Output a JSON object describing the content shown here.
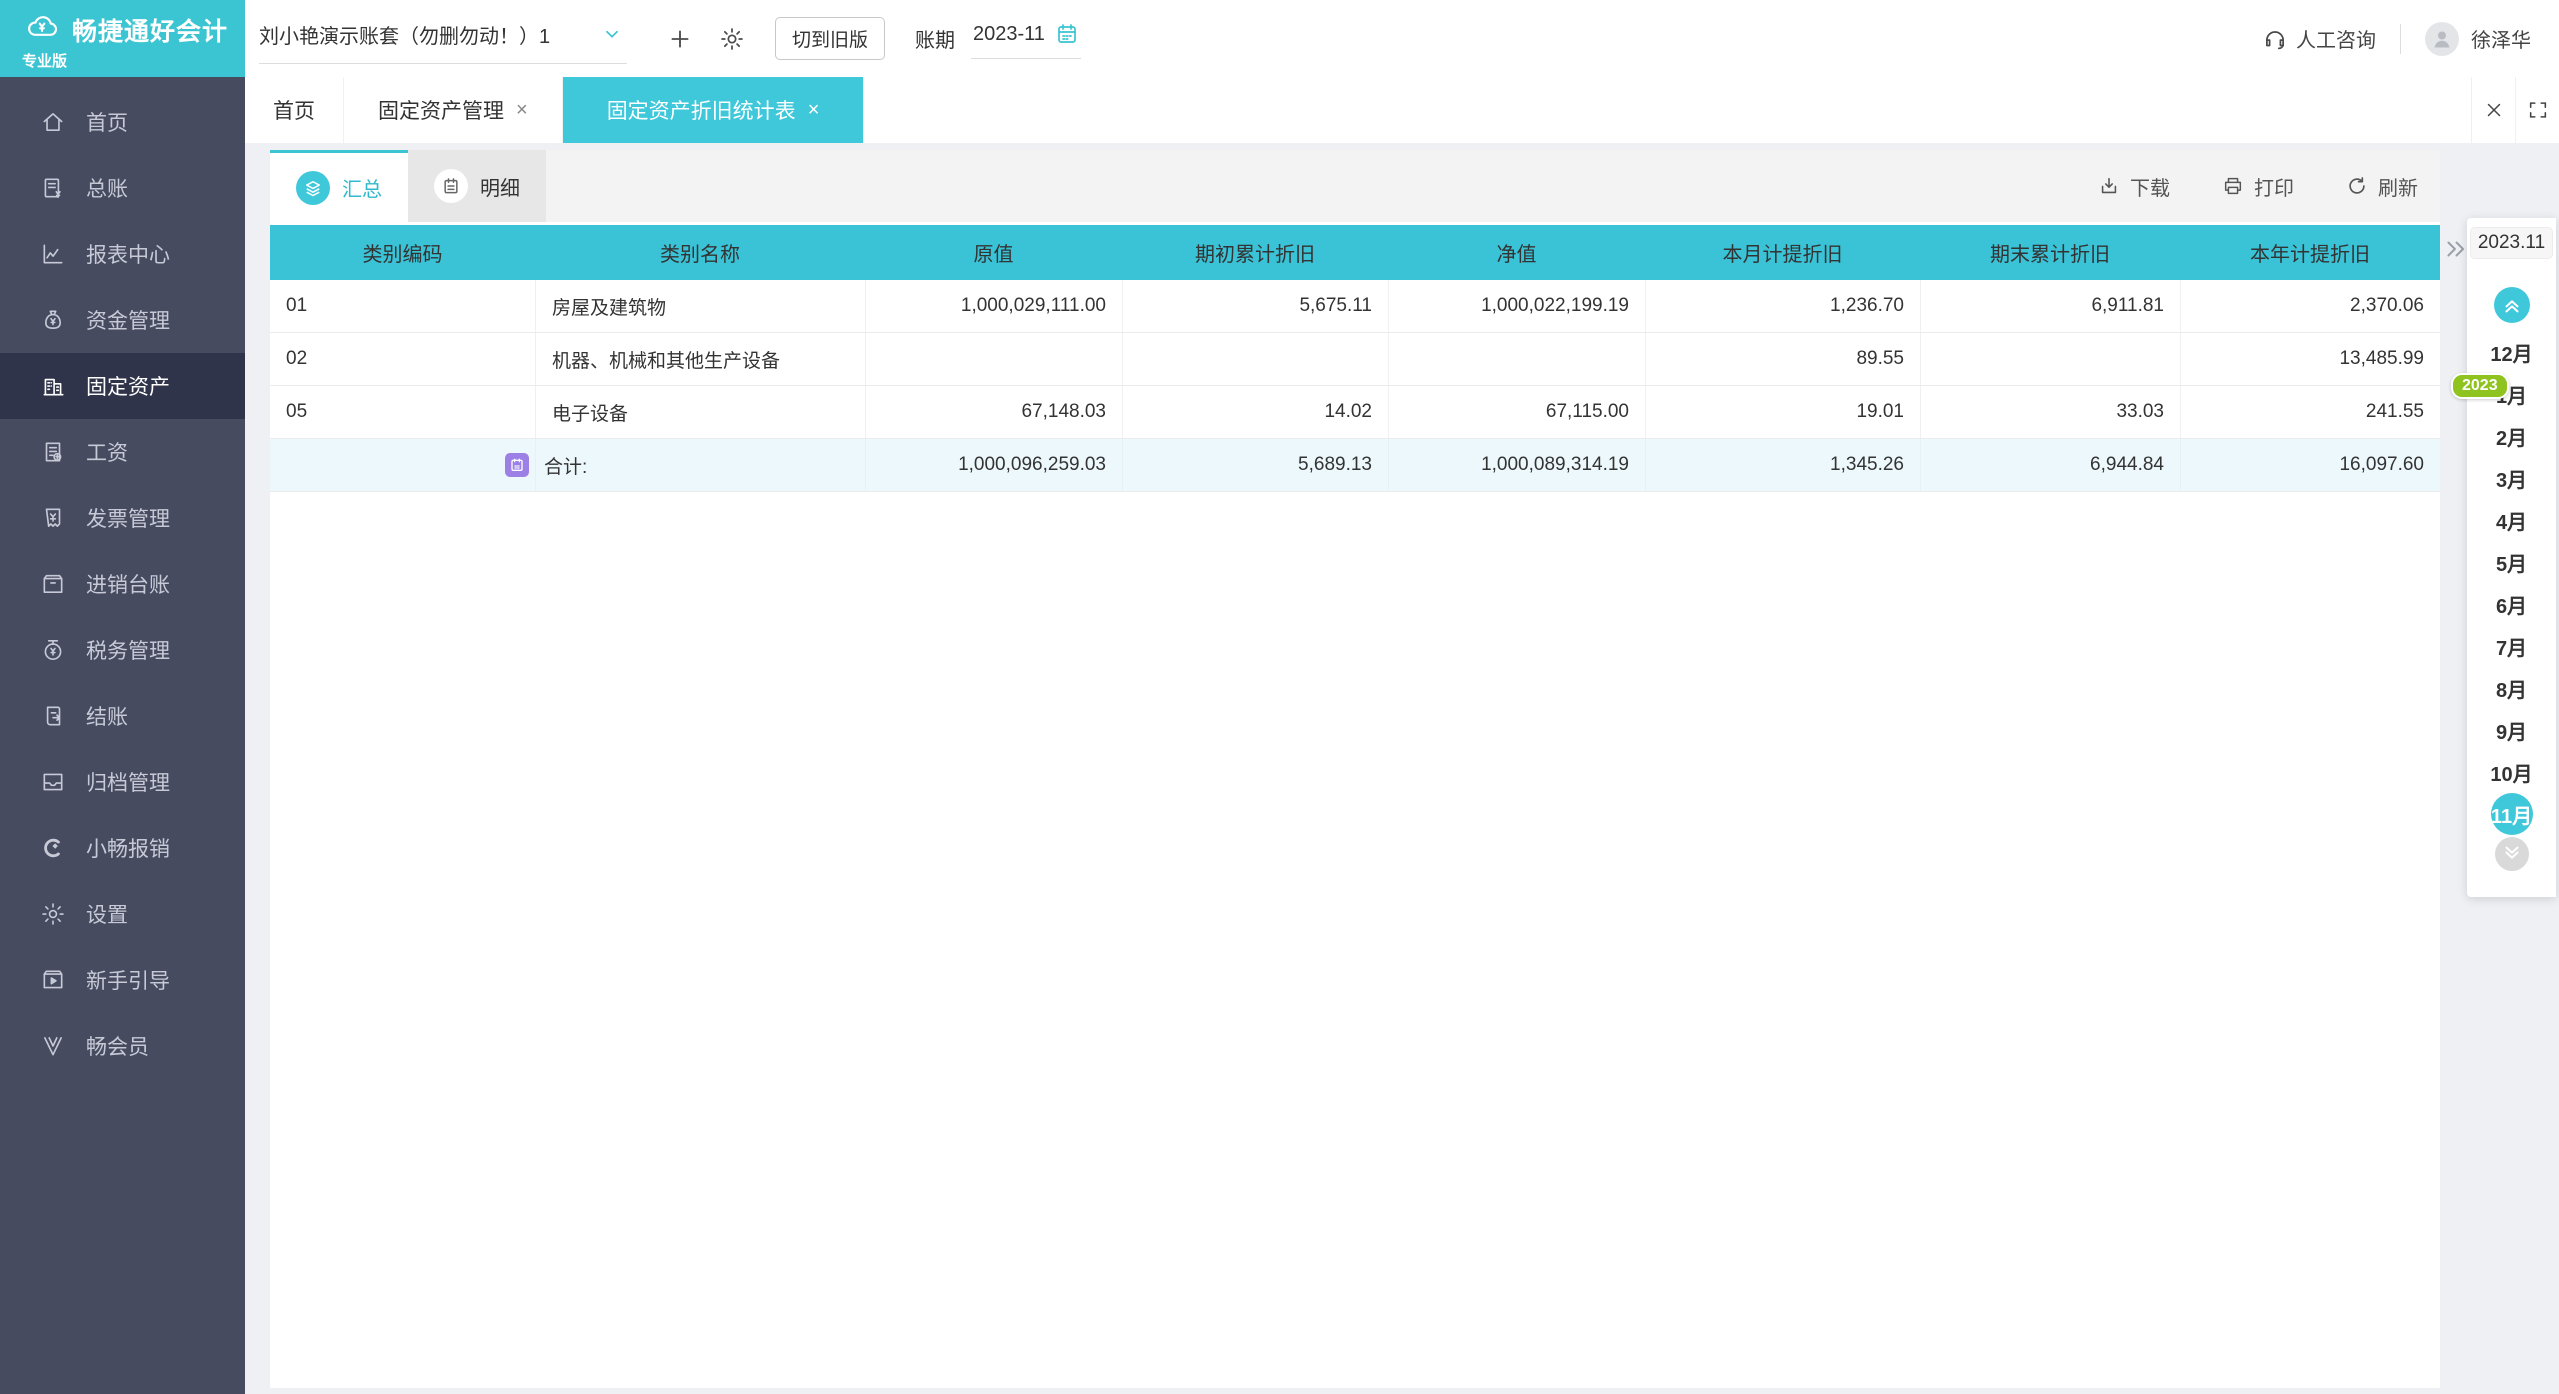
{
  "brand": {
    "name": "畅捷通好会计",
    "edition": "专业版"
  },
  "topbar": {
    "account_name": "刘小艳演示账套（勿删勿动！）1",
    "switch_old_label": "切到旧版",
    "period_label": "账期",
    "period_value": "2023-11",
    "support_label": "人工咨询",
    "user_name": "徐泽华"
  },
  "sidebar": {
    "active_index": 4,
    "items": [
      {
        "icon": "home",
        "label": "首页"
      },
      {
        "icon": "ledger",
        "label": "总账"
      },
      {
        "icon": "report",
        "label": "报表中心"
      },
      {
        "icon": "funds",
        "label": "资金管理"
      },
      {
        "icon": "fixed-assets",
        "label": "固定资产"
      },
      {
        "icon": "payroll",
        "label": "工资"
      },
      {
        "icon": "invoice",
        "label": "发票管理"
      },
      {
        "icon": "inventory",
        "label": "进销台账"
      },
      {
        "icon": "tax",
        "label": "税务管理"
      },
      {
        "icon": "closing",
        "label": "结账"
      },
      {
        "icon": "archive",
        "label": "归档管理"
      },
      {
        "icon": "reimburse",
        "label": "小畅报销"
      },
      {
        "icon": "settings",
        "label": "设置"
      },
      {
        "icon": "guide",
        "label": "新手引导"
      },
      {
        "icon": "member",
        "label": "畅会员"
      }
    ]
  },
  "tabs": [
    {
      "label": "首页",
      "closable": false,
      "active": false
    },
    {
      "label": "固定资产管理",
      "closable": true,
      "active": false
    },
    {
      "label": "固定资产折旧统计表",
      "closable": true,
      "active": true
    }
  ],
  "view_tabs": [
    {
      "icon": "layers",
      "label": "汇总",
      "active": true
    },
    {
      "icon": "detail",
      "label": "明细",
      "active": false
    }
  ],
  "toolbar": {
    "download_label": "下载",
    "print_label": "打印",
    "refresh_label": "刷新"
  },
  "table": {
    "columns": [
      "类别编码",
      "类别名称",
      "原值",
      "期初累计折旧",
      "净值",
      "本月计提折旧",
      "期末累计折旧",
      "本年计提折旧"
    ],
    "rows": [
      {
        "code": "01",
        "name": "房屋及建筑物",
        "values": [
          "1,000,029,111.00",
          "5,675.11",
          "1,000,022,199.19",
          "1,236.70",
          "6,911.81",
          "2,370.06"
        ]
      },
      {
        "code": "02",
        "name": "机器、机械和其他生产设备",
        "values": [
          "",
          "",
          "",
          "89.55",
          "",
          "13,485.99"
        ]
      },
      {
        "code": "05",
        "name": "电子设备",
        "values": [
          "67,148.03",
          "14.02",
          "67,115.00",
          "19.01",
          "33.03",
          "241.55"
        ]
      }
    ],
    "total": {
      "label": "合计:",
      "values": [
        "1,000,096,259.03",
        "5,689.13",
        "1,000,089,314.19",
        "1,345.26",
        "6,944.84",
        "16,097.60"
      ]
    }
  },
  "period_panel": {
    "current": "2023.11",
    "year_badge": "2023",
    "months": [
      "12月",
      "1月",
      "2月",
      "3月",
      "4月",
      "5月",
      "6月",
      "7月",
      "8月",
      "9月",
      "10月",
      "11月"
    ],
    "selected_index": 11
  },
  "icons": {
    "close": "×",
    "tab_close": "×"
  },
  "colors": {
    "accent_teal": "#3bc4d1",
    "header_teal": "#3ac2d6",
    "sidebar_bg": "#474b60",
    "sidebar_active_bg": "#30344a",
    "total_row_bg": "#edf8fc",
    "year_badge_green": "#8fc31f",
    "total_icon_purple": "#9c80e6"
  }
}
